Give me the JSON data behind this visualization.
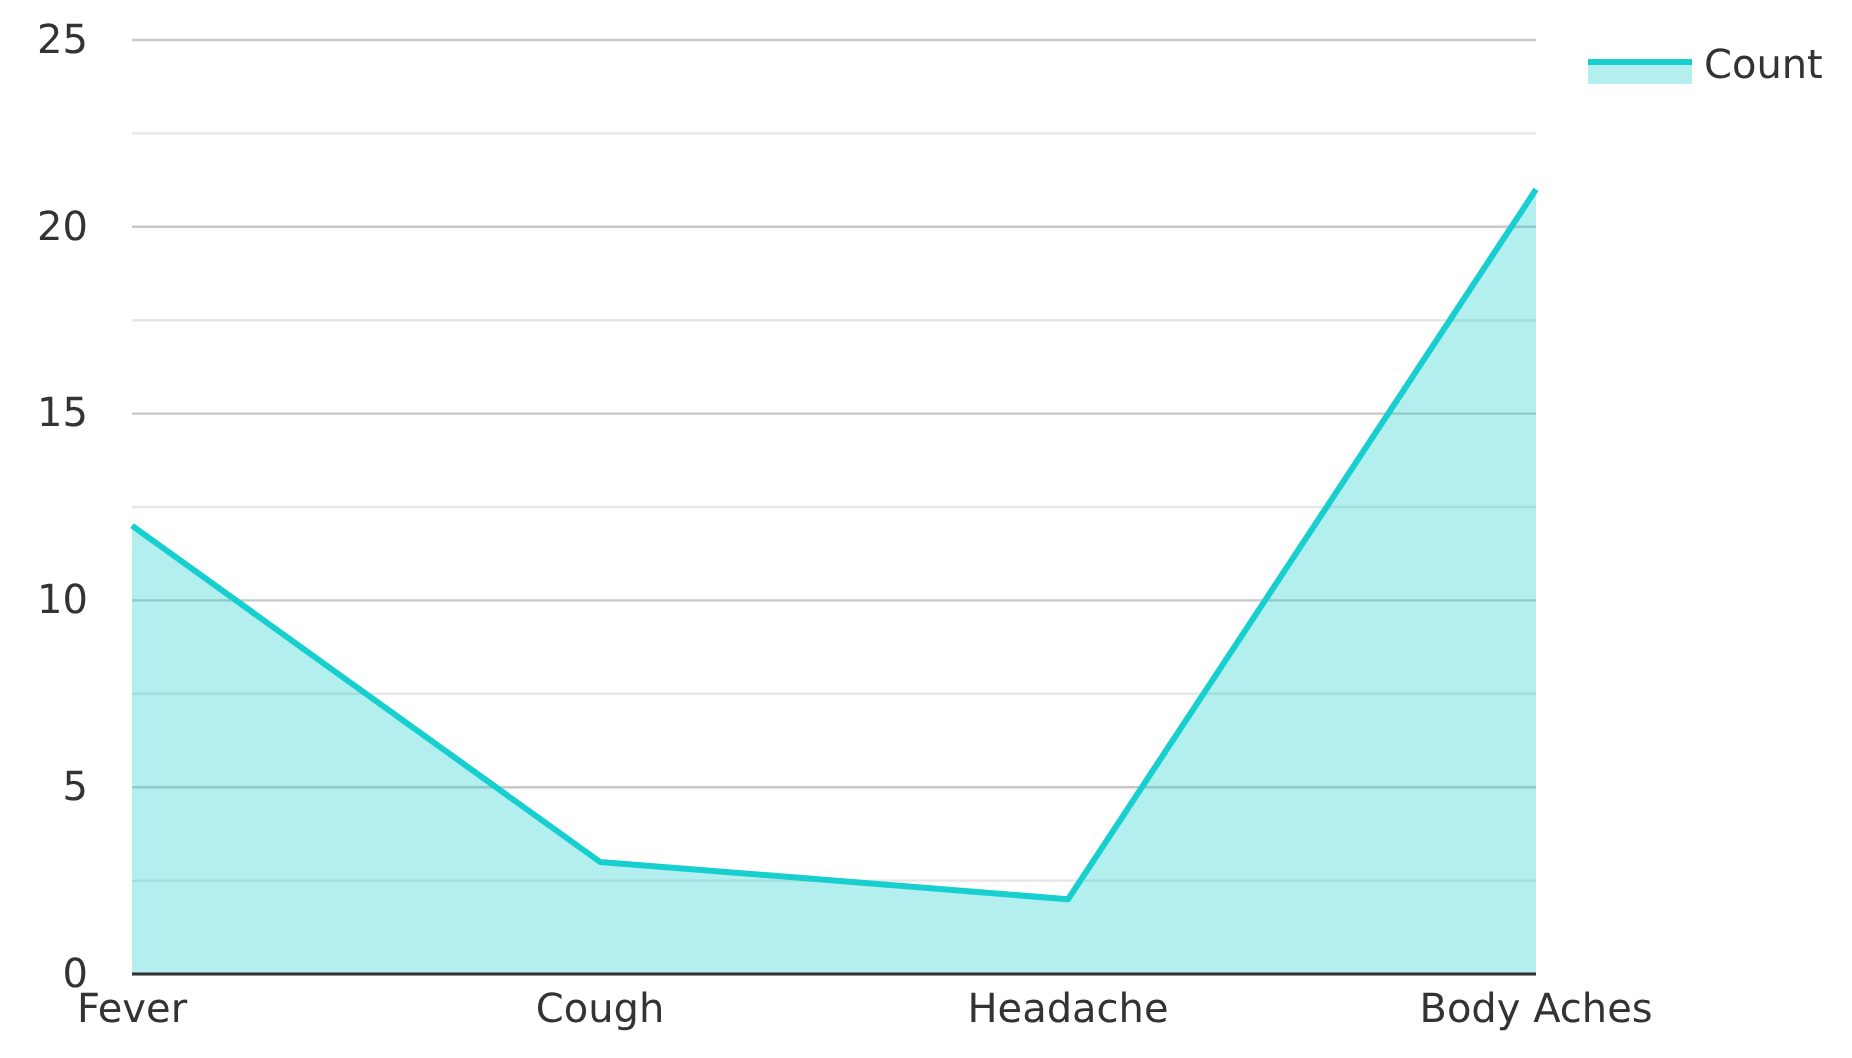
{
  "chart_data": {
    "type": "area",
    "categories": [
      "Fever",
      "Cough",
      "Headache",
      "Body Aches"
    ],
    "series": [
      {
        "name": "Count",
        "color": "#17cfcf",
        "values": [
          12,
          3,
          2,
          21
        ]
      }
    ],
    "ylim": [
      0,
      25
    ],
    "yticks": [
      0,
      {
        "value": 2.5,
        "label": null
      },
      5,
      {
        "value": 7.5,
        "label": null
      },
      10,
      {
        "value": 12.5,
        "label": null
      },
      15,
      {
        "value": 17.5,
        "label": null
      },
      20,
      {
        "value": 22.5,
        "label": null
      },
      25
    ],
    "grid": true,
    "legend": "top right"
  }
}
